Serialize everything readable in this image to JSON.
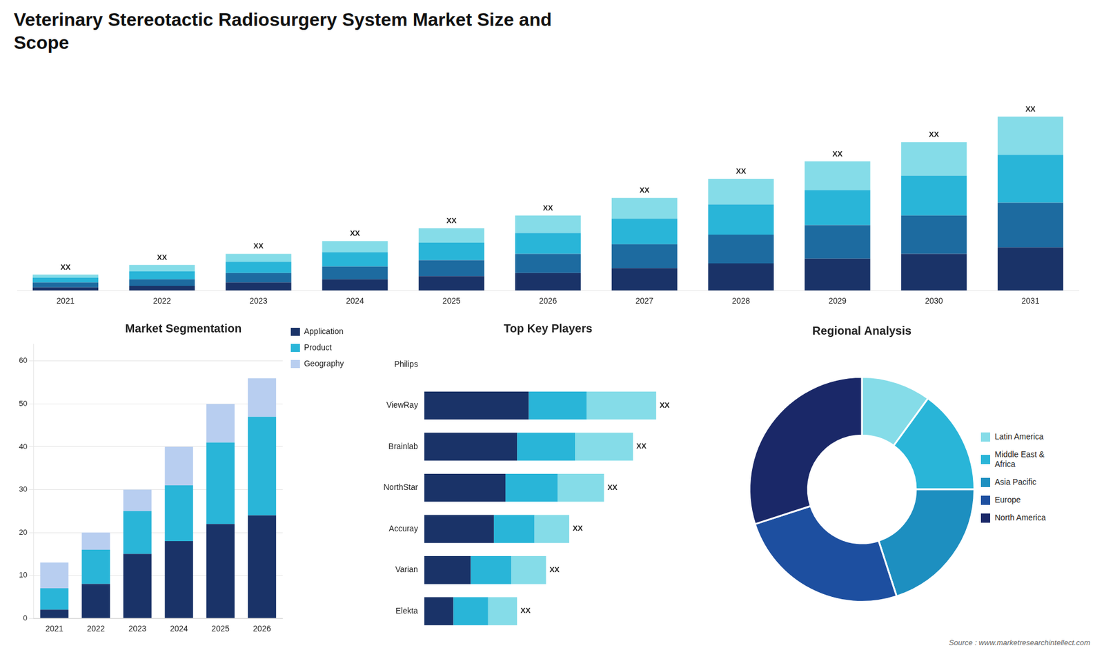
{
  "chart_data": [
    {
      "type": "bar",
      "title": [
        "Veterinary Stereotactic Radiosurgery System Market Size and",
        "Scope"
      ],
      "categories": [
        "2021",
        "2022",
        "2023",
        "2024",
        "2025",
        "2026",
        "2027",
        "2028",
        "2029",
        "2030",
        "2031"
      ],
      "stacked": true,
      "series": [
        {
          "color": "#1a3368",
          "values": [
            2,
            3,
            5,
            7,
            9,
            11,
            14,
            17,
            20,
            23,
            27
          ]
        },
        {
          "color": "#1d6ba0",
          "values": [
            3,
            4,
            6,
            8,
            10,
            12,
            15,
            18,
            21,
            24,
            28
          ]
        },
        {
          "color": "#29b5d8",
          "values": [
            3,
            5,
            7,
            9,
            11,
            13,
            16,
            19,
            22,
            25,
            30
          ]
        },
        {
          "color": "#85dce8",
          "values": [
            2,
            4,
            5,
            7,
            9,
            11,
            13,
            16,
            18,
            21,
            24
          ]
        }
      ],
      "ylim": [
        0,
        143.88
      ],
      "tick_labels": "x",
      "grid": false,
      "annotations": [
        "XX",
        "XX",
        "XX",
        "XX",
        "XX",
        "XX",
        "XX",
        "XX",
        "XX",
        "XX",
        "XX"
      ]
    },
    {
      "type": "bar",
      "title": "Market Segmentation",
      "categories": [
        "2021",
        "2022",
        "2023",
        "2024",
        "2025",
        "2026"
      ],
      "stacked": true,
      "series": [
        {
          "name": "Application",
          "color": "#1a3368",
          "values": [
            2,
            8,
            15,
            18,
            22,
            24
          ]
        },
        {
          "name": "Product",
          "color": "#29b5d8",
          "values": [
            5,
            8,
            10,
            13,
            19,
            23
          ]
        },
        {
          "name": "Geography",
          "color": "#b8cef0",
          "values": [
            6,
            4,
            5,
            9,
            9,
            9
          ]
        }
      ],
      "ylim": [
        0,
        64
      ],
      "yticks": [
        0,
        10,
        20,
        30,
        40,
        50,
        60
      ],
      "grid": true,
      "legend": "right"
    },
    {
      "type": "bar",
      "title": "Top Key Players",
      "orientation": "horizontal",
      "stacked": true,
      "categories": [
        "Philips",
        "ViewRay",
        "Brainlab",
        "NorthStar",
        "Accuray",
        "Varian",
        "Elekta"
      ],
      "series": [
        {
          "color": "#1a3368",
          "values": [
            0,
            18,
            16,
            14,
            12,
            8,
            5
          ]
        },
        {
          "color": "#29b5d8",
          "values": [
            0,
            10,
            10,
            9,
            7,
            7,
            6
          ]
        },
        {
          "color": "#85dce8",
          "values": [
            0,
            12,
            10,
            8,
            6,
            6,
            5
          ]
        }
      ],
      "xlim": [
        0,
        50
      ],
      "tick_labels": "y",
      "grid": false,
      "annotations": [
        null,
        "XX",
        "XX",
        "XX",
        "XX",
        "XX",
        "XX"
      ]
    },
    {
      "type": "doughnut",
      "title": "Regional Analysis",
      "categories": [
        "Latin America",
        "Middle East &\nAfrica",
        "Asia Pacific",
        "Europe",
        "North America"
      ],
      "values": [
        10,
        15,
        20,
        25,
        30
      ],
      "colors": [
        "#85dce8",
        "#29b5d8",
        "#1d8fc0",
        "#1d4fa0",
        "#1a2868"
      ],
      "legend": "right",
      "annotations": [
        "Source : www.marketresearchintellect.com"
      ]
    }
  ]
}
